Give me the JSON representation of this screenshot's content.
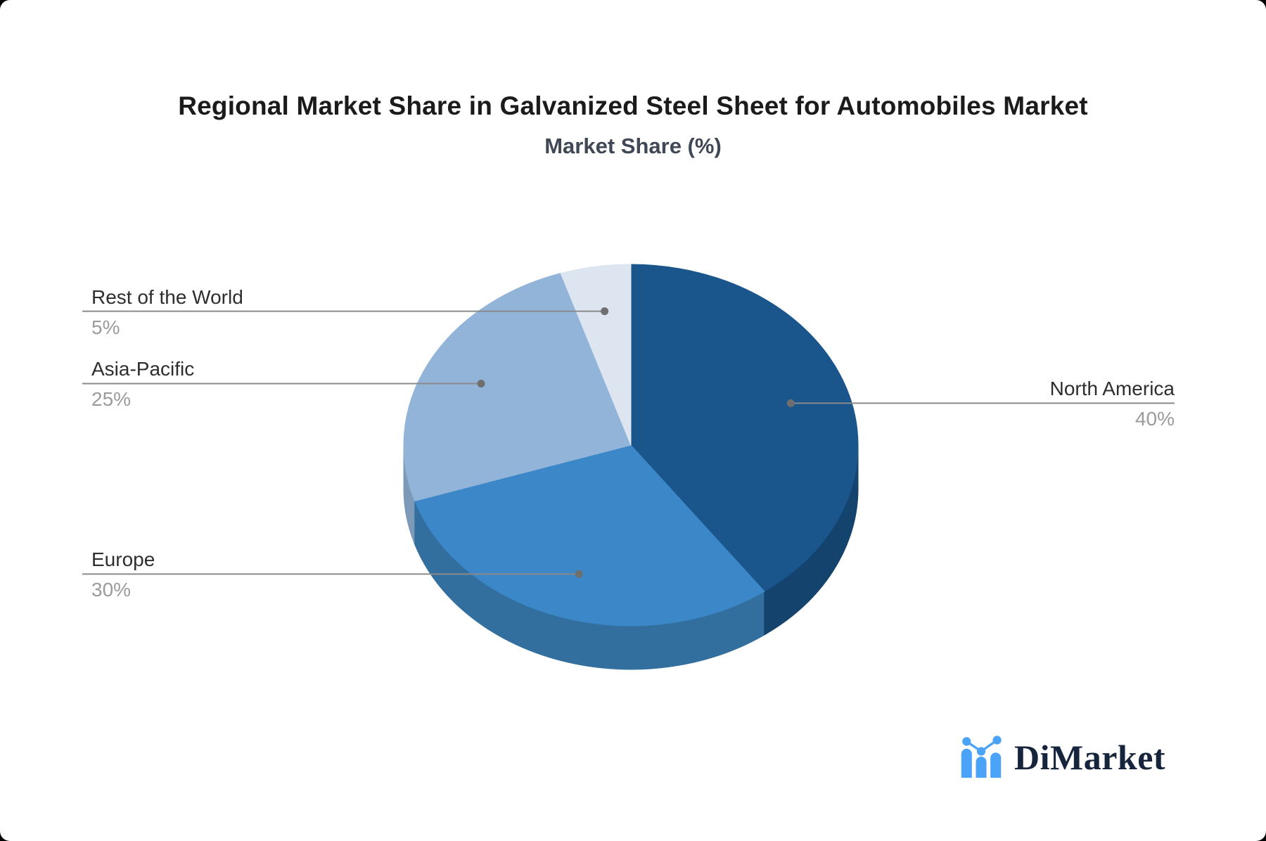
{
  "header": {
    "title": "Regional Market Share in Galvanized Steel Sheet for Automobiles Market",
    "subtitle": "Market Share (%)"
  },
  "logo": {
    "name": "DiMarket",
    "icon": "bar-line-chart-icon",
    "icon_color": "#4BA3F7",
    "text_color": "#16243C"
  },
  "chart_data": {
    "type": "pie",
    "title": "Regional Market Share in Galvanized Steel Sheet for Automobiles Market",
    "subtitle": "Market Share (%)",
    "unit": "%",
    "style": "3d",
    "start_angle": "12-o-clock",
    "direction": "clockwise",
    "legend_position": "leader-lines",
    "slices": [
      {
        "label": "North America",
        "value": 40,
        "display": "40%",
        "color": "#1A568C",
        "side_color": "#14436D",
        "label_side": "right"
      },
      {
        "label": "Europe",
        "value": 30,
        "display": "30%",
        "color": "#3B87C8",
        "side_color": "#336F9E",
        "label_side": "left"
      },
      {
        "label": "Asia-Pacific",
        "value": 25,
        "display": "25%",
        "color": "#92B4D9",
        "side_color": "#7C99B8",
        "label_side": "left"
      },
      {
        "label": "Rest of the World",
        "value": 5,
        "display": "5%",
        "color": "#DCE5F0",
        "side_color": "#BFCCDD",
        "label_side": "left"
      }
    ],
    "label_text_color": "#2E2E2E",
    "percent_text_color": "#9B9B9B",
    "leader_line_color": "#8A8A8A",
    "leader_dot_color": "#6F6F6F"
  }
}
